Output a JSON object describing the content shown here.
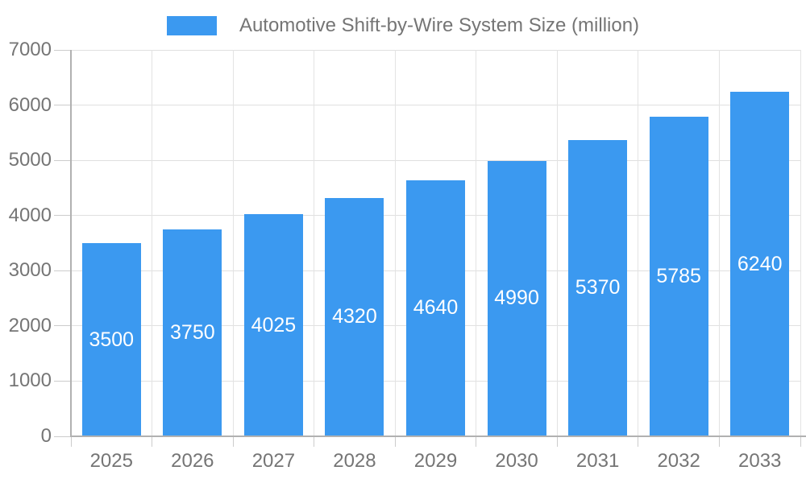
{
  "legend": {
    "label": "Automotive Shift-by-Wire System Size (million)"
  },
  "chart_data": {
    "type": "bar",
    "title": "Automotive Shift-by-Wire System Size (million)",
    "series_name": "Automotive Shift-by-Wire System Size (million)",
    "categories": [
      "2025",
      "2026",
      "2027",
      "2028",
      "2029",
      "2030",
      "2031",
      "2032",
      "2033"
    ],
    "values": [
      3500,
      3750,
      4025,
      4320,
      4640,
      4990,
      5370,
      5785,
      6240
    ],
    "xlabel": "",
    "ylabel": "",
    "ylim": [
      0,
      7000
    ],
    "y_ticks": [
      0,
      1000,
      2000,
      3000,
      4000,
      5000,
      6000,
      7000
    ],
    "grid": true,
    "legend_position": "top-center",
    "bar_color": "#3B99F0",
    "data_labels": {
      "position": "inside-center",
      "color": "#ffffff"
    }
  }
}
